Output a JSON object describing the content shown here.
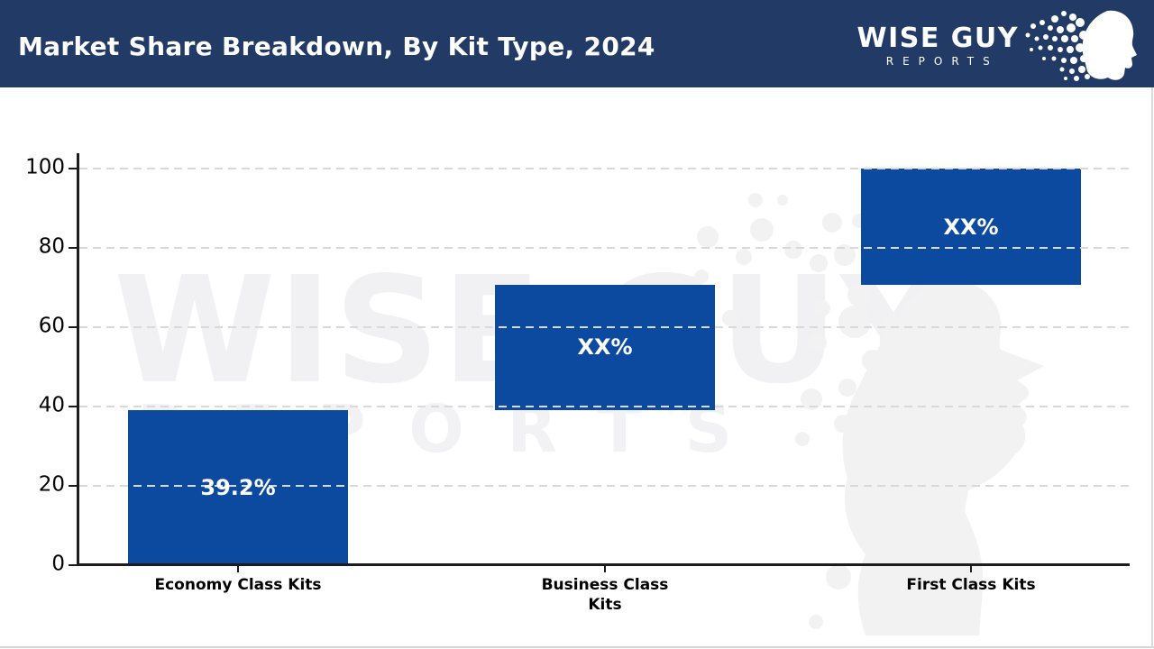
{
  "header": {
    "background": "#213a66",
    "title": "Market Share Breakdown, By Kit Type, 2024",
    "logo": {
      "line1": "WISE GUY",
      "line2": "REPORTS"
    }
  },
  "watermark": {
    "line1": "WISE GUY",
    "line2": "REPORTS"
  },
  "chart_data": {
    "type": "bar",
    "subtype": "floating-segment (waterfall-style market share breakdown)",
    "title": "Market Share Breakdown, By Kit Type, 2024",
    "categories": [
      "Economy Class Kits",
      "Business Class\nKits",
      "First Class Kits"
    ],
    "series": [
      {
        "name": "Market share (%)",
        "segments": [
          {
            "category": "Economy Class Kits",
            "start": 0,
            "end": 39.2,
            "label": "39.2%"
          },
          {
            "category": "Business Class Kits",
            "start": 39.2,
            "end": 70.6,
            "label": "XX%"
          },
          {
            "category": "First Class Kits",
            "start": 70.6,
            "end": 100,
            "label": "XX%"
          }
        ]
      }
    ],
    "xlabel": "",
    "ylabel": "",
    "ylim": [
      0,
      100
    ],
    "yticks": [
      0,
      20,
      40,
      60,
      80,
      100
    ],
    "grid": true,
    "grid_style": "dashed",
    "grid_color": "#d9d9d9",
    "bar_color": "#0b4a9f",
    "bar_label_color": "#ffffff",
    "axis_color": "#1c1c1c",
    "legend_position": "none"
  }
}
